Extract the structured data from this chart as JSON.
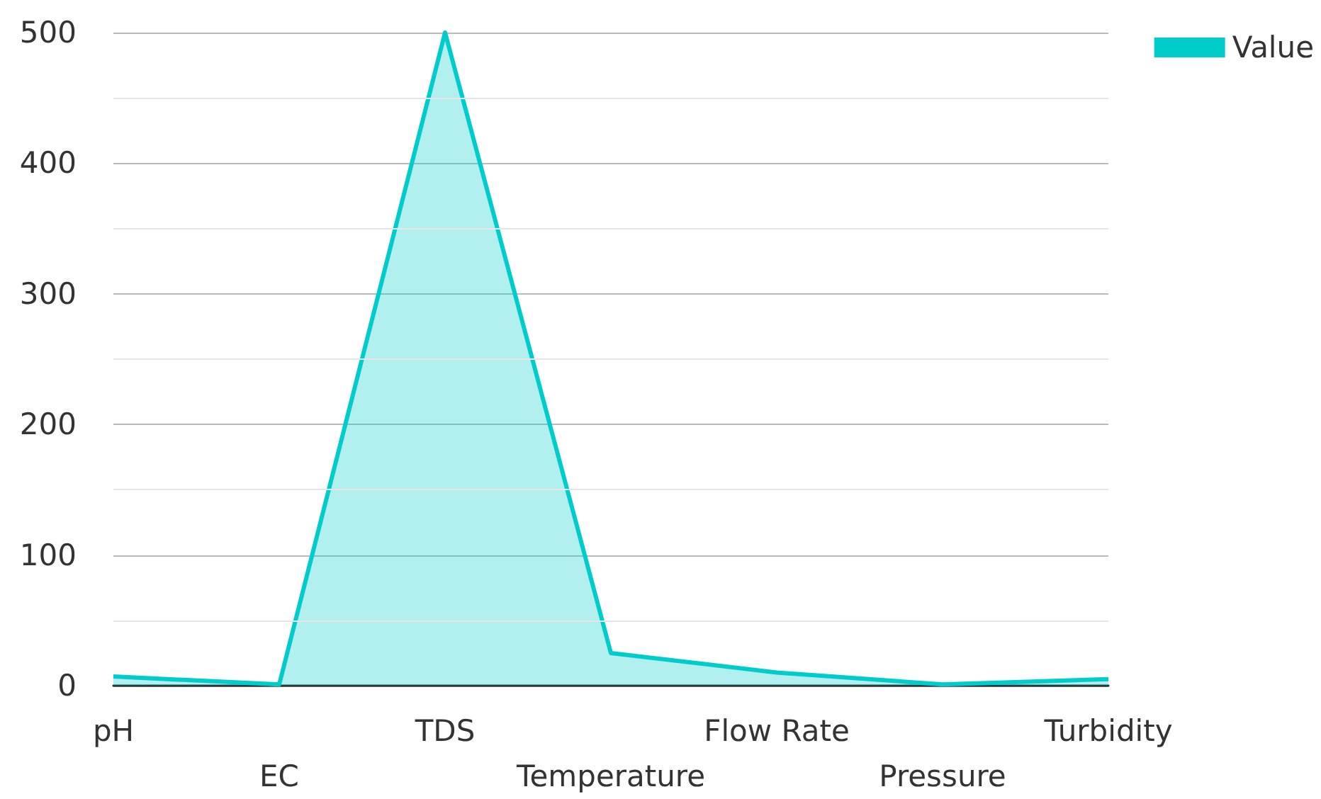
{
  "chart_data": {
    "type": "area",
    "categories": [
      "pH",
      "EC",
      "TDS",
      "Temperature",
      "Flow Rate",
      "Pressure",
      "Turbidity"
    ],
    "series": [
      {
        "name": "Value",
        "color": "#00cccc",
        "values": [
          7,
          1,
          500,
          25,
          10,
          1,
          5
        ]
      }
    ],
    "ylim": [
      0,
      500
    ],
    "yticks": [
      0,
      {
        "value": 50,
        "label": null
      },
      100,
      {
        "value": 150,
        "label": null
      },
      200,
      {
        "value": 250,
        "label": null
      },
      300,
      {
        "value": 350,
        "label": null
      },
      400,
      {
        "value": 450,
        "label": null
      },
      500
    ],
    "grid": "y",
    "legend": "top right",
    "marker": "none"
  }
}
